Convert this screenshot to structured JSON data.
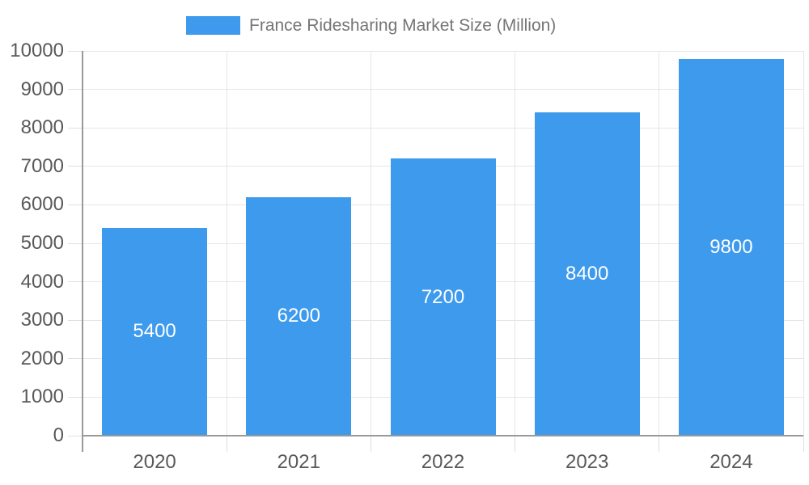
{
  "legend": {
    "label": "France Ridesharing Market Size (Million)"
  },
  "chart_data": {
    "type": "bar",
    "title": "France Ridesharing Market Size (Million)",
    "categories": [
      "2020",
      "2021",
      "2022",
      "2023",
      "2024"
    ],
    "values": [
      5400,
      6200,
      7200,
      8400,
      9800
    ],
    "xlabel": "",
    "ylabel": "",
    "ylim": [
      0,
      10000
    ],
    "ytick_step": 1000,
    "yticks": [
      0,
      1000,
      2000,
      3000,
      4000,
      5000,
      6000,
      7000,
      8000,
      9000,
      10000
    ],
    "grid": true,
    "legend_position": "top",
    "value_labels": "inside-center",
    "colors": {
      "bar": "#3D9AEC",
      "grid": "#E6E6E6",
      "tick": "#E0E0E0",
      "axis": "#999999",
      "axis_label": "#595959",
      "legend_text": "#757575",
      "value_label": "#FFFFFF",
      "background": "#FFFFFF"
    }
  }
}
